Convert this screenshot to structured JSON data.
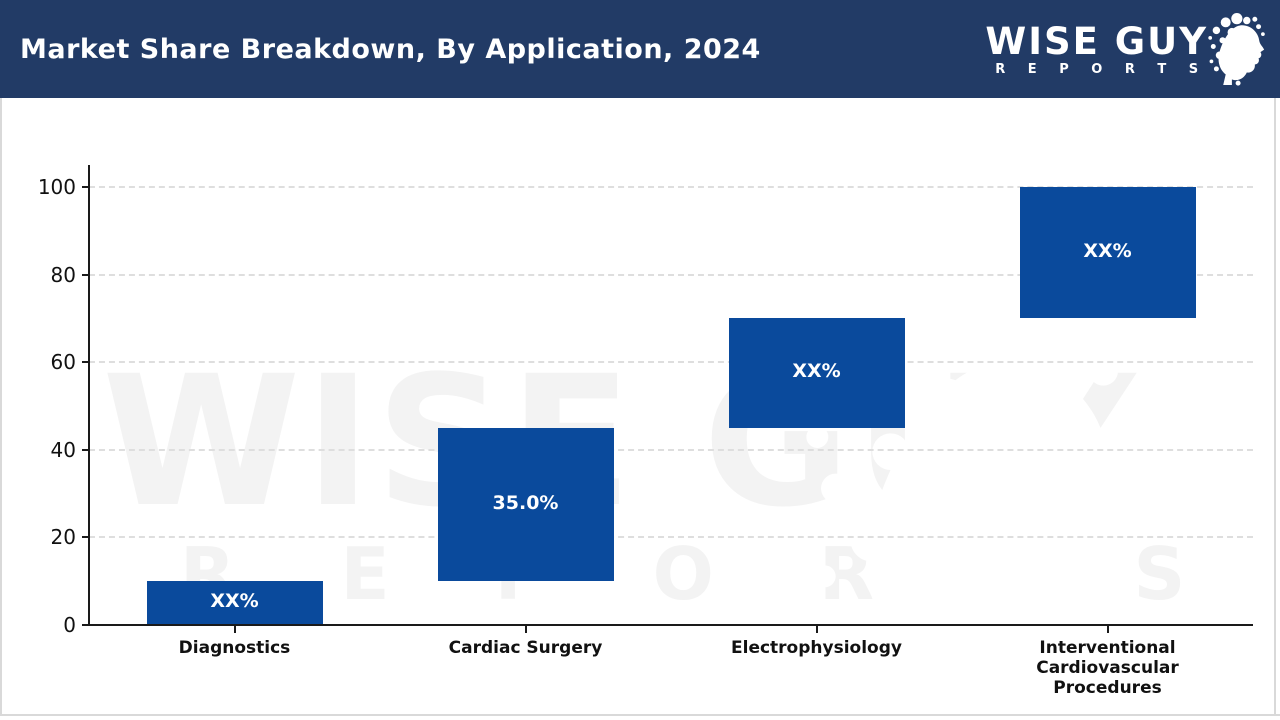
{
  "header": {
    "title": "Market Share Breakdown, By Application, 2024",
    "logo": {
      "line1": "WISE GUY",
      "line2": "REPORTS"
    }
  },
  "watermark": {
    "line1": "WISE GUY",
    "line2": "R E P O R T S"
  },
  "chart_data": {
    "type": "bar",
    "subtype": "waterfall",
    "title": "Market Share Breakdown, By Application, 2024",
    "categories": [
      "Diagnostics",
      "Cardiac Surgery",
      "Electrophysiology",
      "Interventional Cardiovascular Procedures"
    ],
    "segments": [
      {
        "category": "Diagnostics",
        "start": 0,
        "end": 10,
        "label": "XX%"
      },
      {
        "category": "Cardiac Surgery",
        "start": 10,
        "end": 45,
        "label": "35.0%"
      },
      {
        "category": "Electrophysiology",
        "start": 45,
        "end": 70,
        "label": "XX%"
      },
      {
        "category": "Interventional Cardiovascular Procedures",
        "start": 70,
        "end": 100,
        "label": "XX%"
      }
    ],
    "xlabel": "",
    "ylabel": "",
    "ylim": [
      0,
      100
    ],
    "yticks": [
      0,
      20,
      40,
      60,
      80,
      100
    ],
    "grid": "horizontal-dashed",
    "legend": "none",
    "bar_color": "#0a4a9c",
    "label_color": "#ffffff"
  },
  "colors": {
    "header_bg": "#223b66",
    "accent_blue": "#0a4a9c",
    "watermark": "#f3f3f3",
    "gridline": "#dedede"
  }
}
